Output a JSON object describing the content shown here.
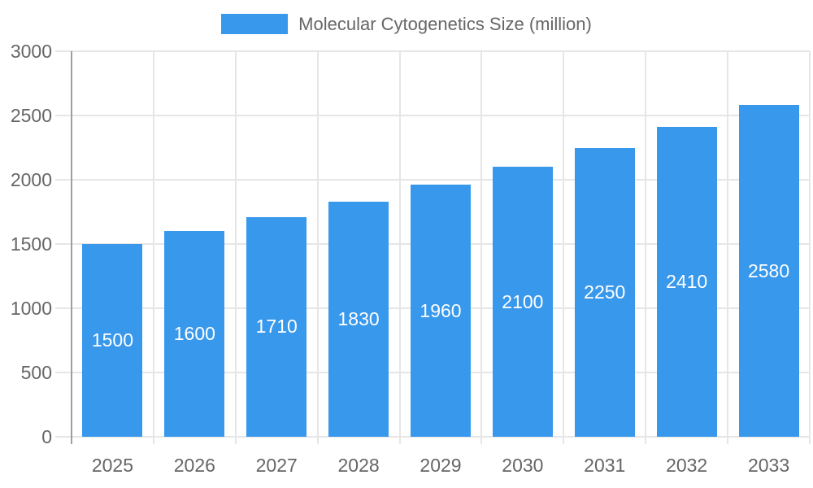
{
  "legend": {
    "label": "Molecular Cytogenetics Size (million)"
  },
  "colors": {
    "bar": "#3898ec",
    "grid": "#e6e6e6",
    "axis": "#9e9e9e",
    "text": "#666666",
    "bar_label": "#ffffff",
    "background": "#ffffff"
  },
  "chart_data": {
    "type": "bar",
    "title": "Molecular Cytogenetics Size (million)",
    "categories": [
      "2025",
      "2026",
      "2027",
      "2028",
      "2029",
      "2030",
      "2031",
      "2032",
      "2033"
    ],
    "values": [
      1500,
      1600,
      1710,
      1830,
      1960,
      2100,
      2250,
      2410,
      2580
    ],
    "xlabel": "",
    "ylabel": "",
    "ylim": [
      0,
      3000
    ],
    "yticks": [
      0,
      500,
      1000,
      1500,
      2000,
      2500,
      3000
    ],
    "grid": true,
    "legend_position": "top",
    "bar_labels": "inside-center"
  }
}
